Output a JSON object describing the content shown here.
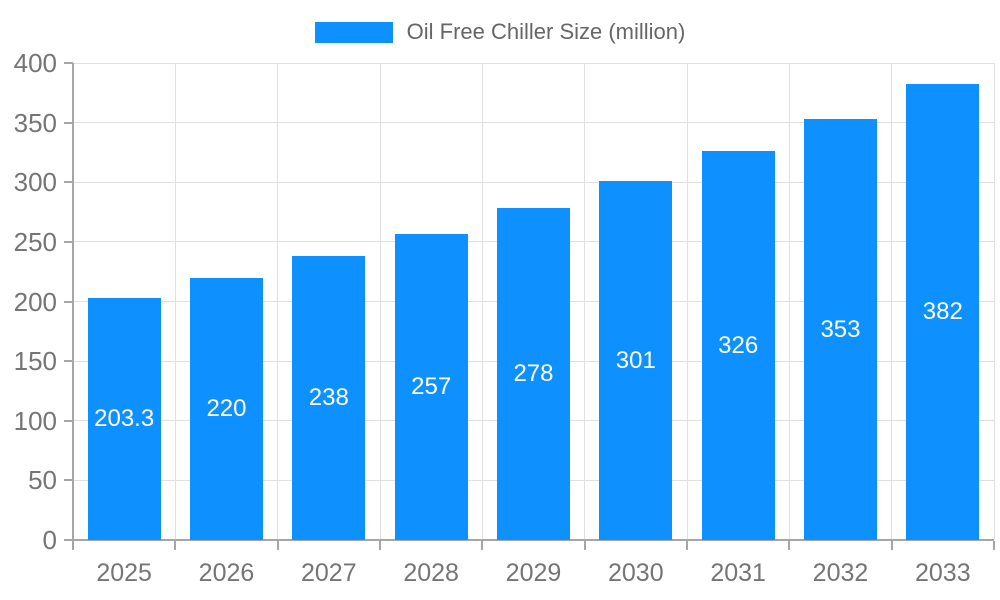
{
  "chart_data": {
    "type": "bar",
    "legend_label": "Oil Free Chiller Size (million)",
    "categories": [
      "2025",
      "2026",
      "2027",
      "2028",
      "2029",
      "2030",
      "2031",
      "2032",
      "2033"
    ],
    "values": [
      203.3,
      220,
      238,
      257,
      278,
      301,
      326,
      353,
      382
    ],
    "value_labels": [
      "203.3",
      "220",
      "238",
      "257",
      "278",
      "301",
      "326",
      "353",
      "382"
    ],
    "series_name": "Oil Free Chiller Size (million)",
    "xlabel": "",
    "ylabel": "",
    "ylim": [
      0,
      400
    ],
    "ytick_interval": 50,
    "ytick_labels": [
      "0",
      "50",
      "100",
      "150",
      "200",
      "250",
      "300",
      "350",
      "400"
    ],
    "grid": true,
    "legend_position": "top-center",
    "colors": {
      "bar": "#0e90ff",
      "bar_label": "#ffffff",
      "grid_line": "#e0e0e0",
      "axis_line": "#a6a6a6",
      "tick_label": "#757575",
      "legend_text": "#666666",
      "background": "#ffffff"
    }
  }
}
